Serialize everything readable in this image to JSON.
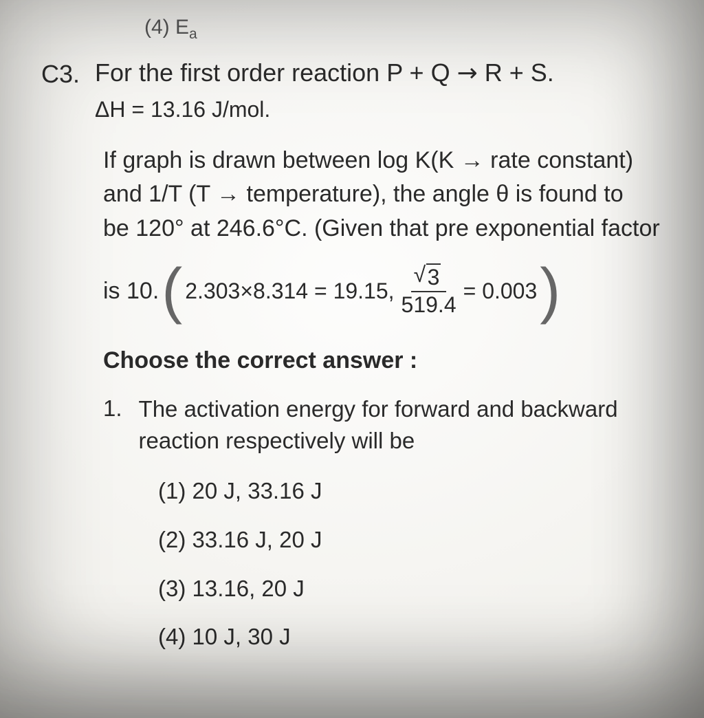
{
  "prev_option": "(4) E",
  "prev_option_sub": "a",
  "question_number": "C3.",
  "question_line1_a": "For the first order reaction P + Q ",
  "question_line1_arrow": "→",
  "question_line1_b": " R + S.",
  "question_line2": "ΔH = 13.16 J/mol.",
  "paragraph_l1": "If graph is drawn between log K(K → rate constant)",
  "paragraph_l2": "and 1/T (T → temperature), the angle θ is found to",
  "paragraph_l3": "be 120° at 246.6°C. (Given that pre exponential factor",
  "formula_prefix": "is 10.",
  "formula_part1": "2.303×8.314 = 19.15,",
  "formula_sqrt_val": "3",
  "formula_den": "519.4",
  "formula_eq": "= 0.003",
  "choose_label": "Choose the correct answer :",
  "subq_number": "1.",
  "subq_l1": "The activation energy for forward and backward",
  "subq_l2": "reaction respectively will be",
  "options": {
    "o1": "(1)  20 J, 33.16 J",
    "o2": "(2)  33.16 J, 20 J",
    "o3": "(3)  13.16, 20 J",
    "o4": "(4)  10 J, 30 J"
  },
  "colors": {
    "text": "#2a2a2a",
    "bg_center": "#fdfdfc",
    "bg_edge": "#b7b3a9"
  }
}
